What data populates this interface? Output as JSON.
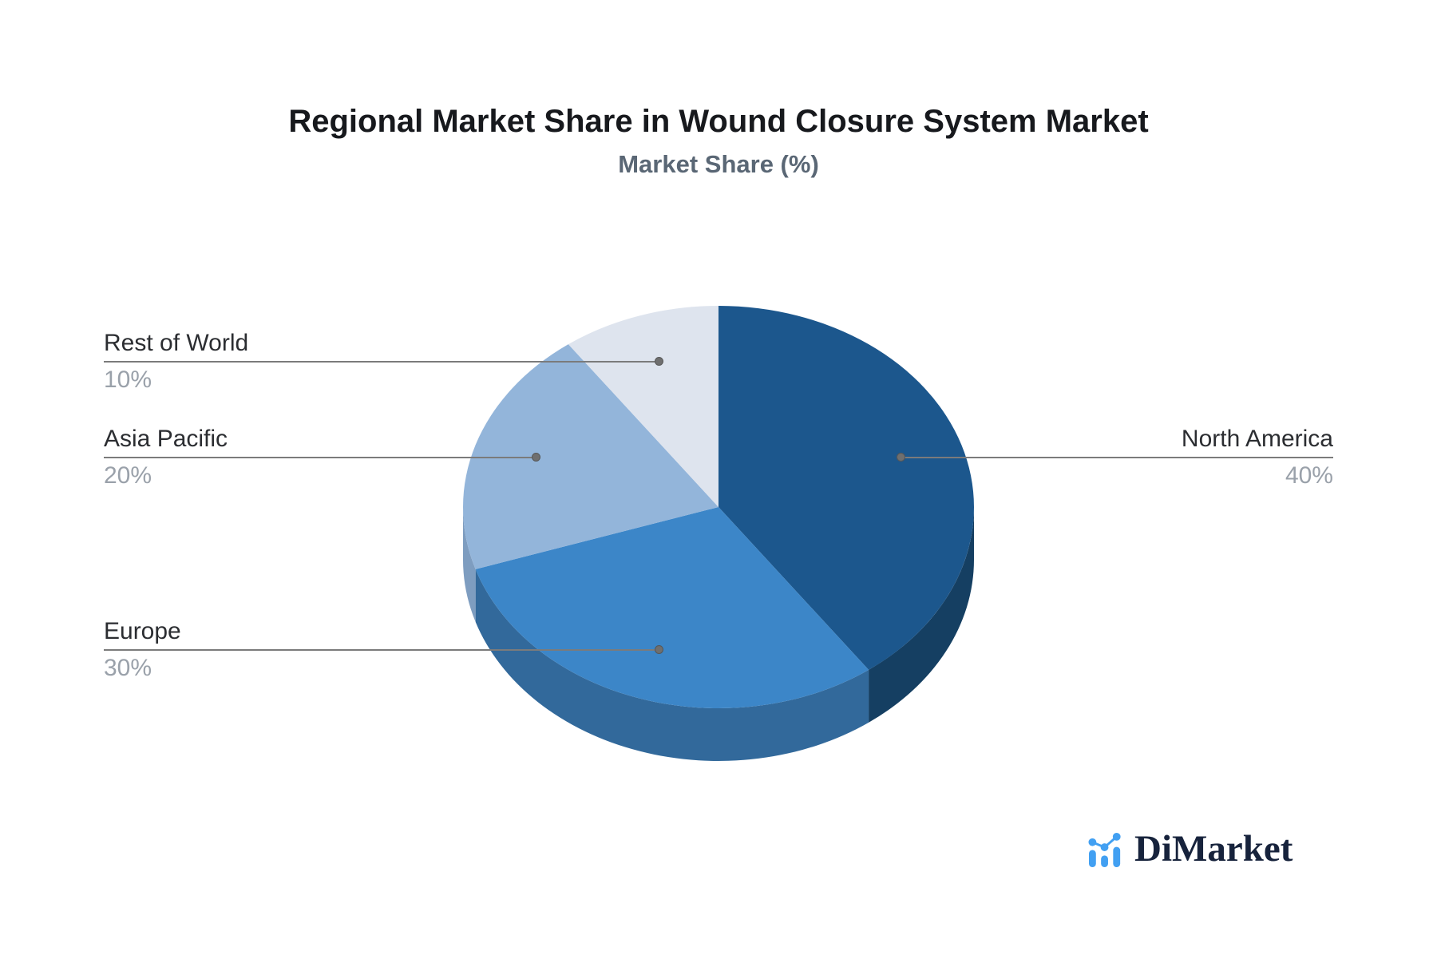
{
  "title": "Regional Market Share in Wound Closure System Market",
  "subtitle": "Market Share (%)",
  "brand": {
    "name": "DiMarket",
    "icon": "bar-line-chart-icon",
    "icon_color": "#42a0f2",
    "text_color": "#17233c"
  },
  "chart_data": {
    "type": "pie",
    "style": "3d",
    "title": "Regional Market Share in Wound Closure System Market",
    "subtitle": "Market Share (%)",
    "categories": [
      "North America",
      "Europe",
      "Asia Pacific",
      "Rest of World"
    ],
    "values": [
      40,
      30,
      20,
      10
    ],
    "unit": "%",
    "start_angle": "12-o-clock",
    "direction": "clockwise",
    "slice_colors": [
      "#1c578d",
      "#3c86c8",
      "#93b5da",
      "#dee4ee"
    ],
    "slice_side_colors": [
      "#153f62",
      "#32699b",
      "#7e9dc0",
      "#bcc9db"
    ],
    "label_color": "#2b2d31",
    "percent_color": "#9aa1aa",
    "leader_line_color": "#7b7b7b"
  }
}
